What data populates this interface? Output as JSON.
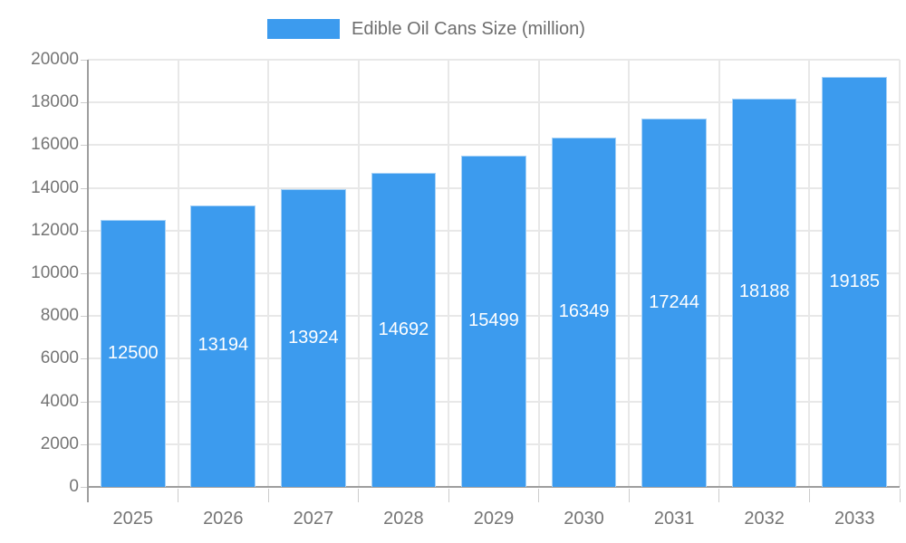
{
  "legend": {
    "label": "Edible Oil Cans Size (million)",
    "swatch_color": "#3c9bee"
  },
  "chart_data": {
    "type": "bar",
    "title": "Edible Oil Cans Size (million)",
    "categories": [
      "2025",
      "2026",
      "2027",
      "2028",
      "2029",
      "2030",
      "2031",
      "2032",
      "2033"
    ],
    "values": [
      12500,
      13194,
      13924,
      14692,
      15499,
      16349,
      17244,
      18188,
      19185
    ],
    "value_labels": [
      "12500",
      "13194",
      "13924",
      "14692",
      "15499",
      "16349",
      "17244",
      "18188",
      "19185"
    ],
    "xlabel": "",
    "ylabel": "",
    "ylim": [
      0,
      20000
    ],
    "ytick_step": 2000,
    "ytick_labels": [
      "0",
      "2000",
      "4000",
      "6000",
      "8000",
      "10000",
      "12000",
      "14000",
      "16000",
      "18000",
      "20000"
    ],
    "grid": true,
    "legend_position": "top",
    "bar_color": "#3c9bee",
    "bar_label_color": "#ffffff",
    "axis_color": "#9e9e9e",
    "gridline_color": "#e8e8e8",
    "tick_text_color": "#757575"
  }
}
